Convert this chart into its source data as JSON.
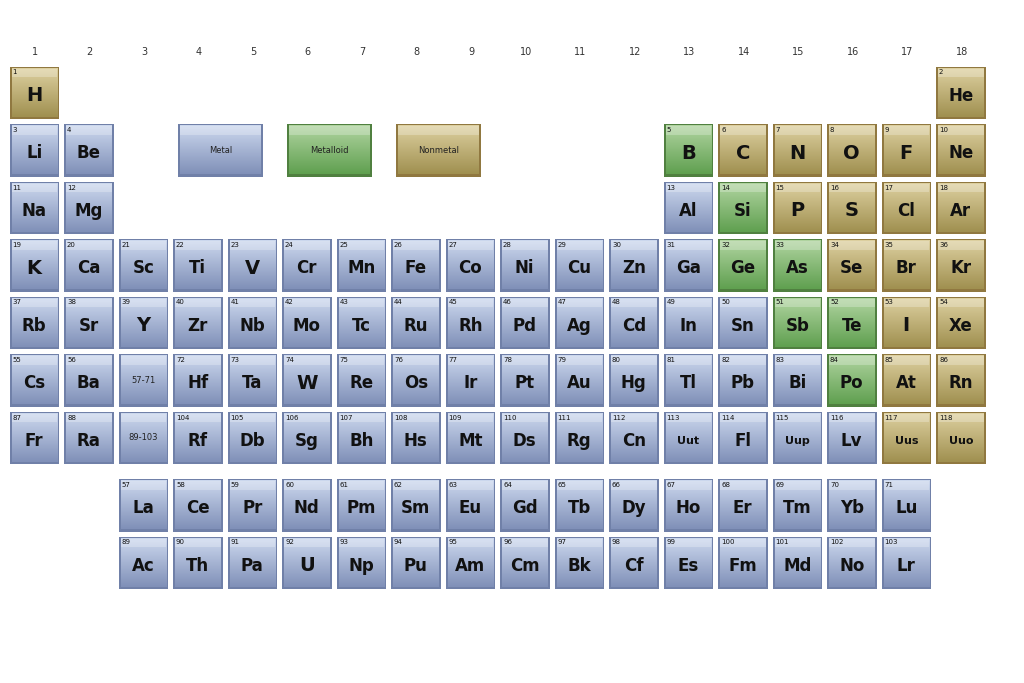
{
  "background": "#ffffff",
  "type_colors": {
    "metal": {
      "top": "#ccd8ee",
      "mid": "#a8bcdc",
      "bot": "#8090b8",
      "edge": "#7080a8"
    },
    "metalloid": {
      "top": "#b0d4a0",
      "mid": "#90c080",
      "bot": "#60a050",
      "edge": "#508040"
    },
    "nonmetal": {
      "top": "#ddd0a0",
      "mid": "#c8b878",
      "bot": "#a09050",
      "edge": "#907840"
    }
  },
  "elements": [
    {
      "symbol": "H",
      "number": "1",
      "group": 1,
      "period": 1,
      "type": "nonmetal"
    },
    {
      "symbol": "He",
      "number": "2",
      "group": 18,
      "period": 1,
      "type": "nonmetal"
    },
    {
      "symbol": "Li",
      "number": "3",
      "group": 1,
      "period": 2,
      "type": "metal"
    },
    {
      "symbol": "Be",
      "number": "4",
      "group": 2,
      "period": 2,
      "type": "metal"
    },
    {
      "symbol": "B",
      "number": "5",
      "group": 13,
      "period": 2,
      "type": "metalloid"
    },
    {
      "symbol": "C",
      "number": "6",
      "group": 14,
      "period": 2,
      "type": "nonmetal"
    },
    {
      "symbol": "N",
      "number": "7",
      "group": 15,
      "period": 2,
      "type": "nonmetal"
    },
    {
      "symbol": "O",
      "number": "8",
      "group": 16,
      "period": 2,
      "type": "nonmetal"
    },
    {
      "symbol": "F",
      "number": "9",
      "group": 17,
      "period": 2,
      "type": "nonmetal"
    },
    {
      "symbol": "Ne",
      "number": "10",
      "group": 18,
      "period": 2,
      "type": "nonmetal"
    },
    {
      "symbol": "Na",
      "number": "11",
      "group": 1,
      "period": 3,
      "type": "metal"
    },
    {
      "symbol": "Mg",
      "number": "12",
      "group": 2,
      "period": 3,
      "type": "metal"
    },
    {
      "symbol": "Al",
      "number": "13",
      "group": 13,
      "period": 3,
      "type": "metal"
    },
    {
      "symbol": "Si",
      "number": "14",
      "group": 14,
      "period": 3,
      "type": "metalloid"
    },
    {
      "symbol": "P",
      "number": "15",
      "group": 15,
      "period": 3,
      "type": "nonmetal"
    },
    {
      "symbol": "S",
      "number": "16",
      "group": 16,
      "period": 3,
      "type": "nonmetal"
    },
    {
      "symbol": "Cl",
      "number": "17",
      "group": 17,
      "period": 3,
      "type": "nonmetal"
    },
    {
      "symbol": "Ar",
      "number": "18",
      "group": 18,
      "period": 3,
      "type": "nonmetal"
    },
    {
      "symbol": "K",
      "number": "19",
      "group": 1,
      "period": 4,
      "type": "metal"
    },
    {
      "symbol": "Ca",
      "number": "20",
      "group": 2,
      "period": 4,
      "type": "metal"
    },
    {
      "symbol": "Sc",
      "number": "21",
      "group": 3,
      "period": 4,
      "type": "metal"
    },
    {
      "symbol": "Ti",
      "number": "22",
      "group": 4,
      "period": 4,
      "type": "metal"
    },
    {
      "symbol": "V",
      "number": "23",
      "group": 5,
      "period": 4,
      "type": "metal"
    },
    {
      "symbol": "Cr",
      "number": "24",
      "group": 6,
      "period": 4,
      "type": "metal"
    },
    {
      "symbol": "Mn",
      "number": "25",
      "group": 7,
      "period": 4,
      "type": "metal"
    },
    {
      "symbol": "Fe",
      "number": "26",
      "group": 8,
      "period": 4,
      "type": "metal"
    },
    {
      "symbol": "Co",
      "number": "27",
      "group": 9,
      "period": 4,
      "type": "metal"
    },
    {
      "symbol": "Ni",
      "number": "28",
      "group": 10,
      "period": 4,
      "type": "metal"
    },
    {
      "symbol": "Cu",
      "number": "29",
      "group": 11,
      "period": 4,
      "type": "metal"
    },
    {
      "symbol": "Zn",
      "number": "30",
      "group": 12,
      "period": 4,
      "type": "metal"
    },
    {
      "symbol": "Ga",
      "number": "31",
      "group": 13,
      "period": 4,
      "type": "metal"
    },
    {
      "symbol": "Ge",
      "number": "32",
      "group": 14,
      "period": 4,
      "type": "metalloid"
    },
    {
      "symbol": "As",
      "number": "33",
      "group": 15,
      "period": 4,
      "type": "metalloid"
    },
    {
      "symbol": "Se",
      "number": "34",
      "group": 16,
      "period": 4,
      "type": "nonmetal"
    },
    {
      "symbol": "Br",
      "number": "35",
      "group": 17,
      "period": 4,
      "type": "nonmetal"
    },
    {
      "symbol": "Kr",
      "number": "36",
      "group": 18,
      "period": 4,
      "type": "nonmetal"
    },
    {
      "symbol": "Rb",
      "number": "37",
      "group": 1,
      "period": 5,
      "type": "metal"
    },
    {
      "symbol": "Sr",
      "number": "38",
      "group": 2,
      "period": 5,
      "type": "metal"
    },
    {
      "symbol": "Y",
      "number": "39",
      "group": 3,
      "period": 5,
      "type": "metal"
    },
    {
      "symbol": "Zr",
      "number": "40",
      "group": 4,
      "period": 5,
      "type": "metal"
    },
    {
      "symbol": "Nb",
      "number": "41",
      "group": 5,
      "period": 5,
      "type": "metal"
    },
    {
      "symbol": "Mo",
      "number": "42",
      "group": 6,
      "period": 5,
      "type": "metal"
    },
    {
      "symbol": "Tc",
      "number": "43",
      "group": 7,
      "period": 5,
      "type": "metal"
    },
    {
      "symbol": "Ru",
      "number": "44",
      "group": 8,
      "period": 5,
      "type": "metal"
    },
    {
      "symbol": "Rh",
      "number": "45",
      "group": 9,
      "period": 5,
      "type": "metal"
    },
    {
      "symbol": "Pd",
      "number": "46",
      "group": 10,
      "period": 5,
      "type": "metal"
    },
    {
      "symbol": "Ag",
      "number": "47",
      "group": 11,
      "period": 5,
      "type": "metal"
    },
    {
      "symbol": "Cd",
      "number": "48",
      "group": 12,
      "period": 5,
      "type": "metal"
    },
    {
      "symbol": "In",
      "number": "49",
      "group": 13,
      "period": 5,
      "type": "metal"
    },
    {
      "symbol": "Sn",
      "number": "50",
      "group": 14,
      "period": 5,
      "type": "metal"
    },
    {
      "symbol": "Sb",
      "number": "51",
      "group": 15,
      "period": 5,
      "type": "metalloid"
    },
    {
      "symbol": "Te",
      "number": "52",
      "group": 16,
      "period": 5,
      "type": "metalloid"
    },
    {
      "symbol": "I",
      "number": "53",
      "group": 17,
      "period": 5,
      "type": "nonmetal"
    },
    {
      "symbol": "Xe",
      "number": "54",
      "group": 18,
      "period": 5,
      "type": "nonmetal"
    },
    {
      "symbol": "Cs",
      "number": "55",
      "group": 1,
      "period": 6,
      "type": "metal"
    },
    {
      "symbol": "Ba",
      "number": "56",
      "group": 2,
      "period": 6,
      "type": "metal"
    },
    {
      "symbol": "57-71",
      "number": "57-71",
      "group": 3,
      "period": 6,
      "type": "metal",
      "placeholder": true
    },
    {
      "symbol": "Hf",
      "number": "72",
      "group": 4,
      "period": 6,
      "type": "metal"
    },
    {
      "symbol": "Ta",
      "number": "73",
      "group": 5,
      "period": 6,
      "type": "metal"
    },
    {
      "symbol": "W",
      "number": "74",
      "group": 6,
      "period": 6,
      "type": "metal"
    },
    {
      "symbol": "Re",
      "number": "75",
      "group": 7,
      "period": 6,
      "type": "metal"
    },
    {
      "symbol": "Os",
      "number": "76",
      "group": 8,
      "period": 6,
      "type": "metal"
    },
    {
      "symbol": "Ir",
      "number": "77",
      "group": 9,
      "period": 6,
      "type": "metal"
    },
    {
      "symbol": "Pt",
      "number": "78",
      "group": 10,
      "period": 6,
      "type": "metal"
    },
    {
      "symbol": "Au",
      "number": "79",
      "group": 11,
      "period": 6,
      "type": "metal"
    },
    {
      "symbol": "Hg",
      "number": "80",
      "group": 12,
      "period": 6,
      "type": "metal"
    },
    {
      "symbol": "Tl",
      "number": "81",
      "group": 13,
      "period": 6,
      "type": "metal"
    },
    {
      "symbol": "Pb",
      "number": "82",
      "group": 14,
      "period": 6,
      "type": "metal"
    },
    {
      "symbol": "Bi",
      "number": "83",
      "group": 15,
      "period": 6,
      "type": "metal"
    },
    {
      "symbol": "Po",
      "number": "84",
      "group": 16,
      "period": 6,
      "type": "metalloid"
    },
    {
      "symbol": "At",
      "number": "85",
      "group": 17,
      "period": 6,
      "type": "nonmetal"
    },
    {
      "symbol": "Rn",
      "number": "86",
      "group": 18,
      "period": 6,
      "type": "nonmetal"
    },
    {
      "symbol": "Fr",
      "number": "87",
      "group": 1,
      "period": 7,
      "type": "metal"
    },
    {
      "symbol": "Ra",
      "number": "88",
      "group": 2,
      "period": 7,
      "type": "metal"
    },
    {
      "symbol": "89-103",
      "number": "89-103",
      "group": 3,
      "period": 7,
      "type": "metal",
      "placeholder": true
    },
    {
      "symbol": "Rf",
      "number": "104",
      "group": 4,
      "period": 7,
      "type": "metal"
    },
    {
      "symbol": "Db",
      "number": "105",
      "group": 5,
      "period": 7,
      "type": "metal"
    },
    {
      "symbol": "Sg",
      "number": "106",
      "group": 6,
      "period": 7,
      "type": "metal"
    },
    {
      "symbol": "Bh",
      "number": "107",
      "group": 7,
      "period": 7,
      "type": "metal"
    },
    {
      "symbol": "Hs",
      "number": "108",
      "group": 8,
      "period": 7,
      "type": "metal"
    },
    {
      "symbol": "Mt",
      "number": "109",
      "group": 9,
      "period": 7,
      "type": "metal"
    },
    {
      "symbol": "Ds",
      "number": "110",
      "group": 10,
      "period": 7,
      "type": "metal"
    },
    {
      "symbol": "Rg",
      "number": "111",
      "group": 11,
      "period": 7,
      "type": "metal"
    },
    {
      "symbol": "Cn",
      "number": "112",
      "group": 12,
      "period": 7,
      "type": "metal"
    },
    {
      "symbol": "Uut",
      "number": "113",
      "group": 13,
      "period": 7,
      "type": "metal"
    },
    {
      "symbol": "Fl",
      "number": "114",
      "group": 14,
      "period": 7,
      "type": "metal"
    },
    {
      "symbol": "Uup",
      "number": "115",
      "group": 15,
      "period": 7,
      "type": "metal"
    },
    {
      "symbol": "Lv",
      "number": "116",
      "group": 16,
      "period": 7,
      "type": "metal"
    },
    {
      "symbol": "Uus",
      "number": "117",
      "group": 17,
      "period": 7,
      "type": "nonmetal"
    },
    {
      "symbol": "Uuo",
      "number": "118",
      "group": 18,
      "period": 7,
      "type": "nonmetal"
    },
    {
      "symbol": "La",
      "number": "57",
      "group": 3,
      "period": 8,
      "type": "metal"
    },
    {
      "symbol": "Ce",
      "number": "58",
      "group": 4,
      "period": 8,
      "type": "metal"
    },
    {
      "symbol": "Pr",
      "number": "59",
      "group": 5,
      "period": 8,
      "type": "metal"
    },
    {
      "symbol": "Nd",
      "number": "60",
      "group": 6,
      "period": 8,
      "type": "metal"
    },
    {
      "symbol": "Pm",
      "number": "61",
      "group": 7,
      "period": 8,
      "type": "metal"
    },
    {
      "symbol": "Sm",
      "number": "62",
      "group": 8,
      "period": 8,
      "type": "metal"
    },
    {
      "symbol": "Eu",
      "number": "63",
      "group": 9,
      "period": 8,
      "type": "metal"
    },
    {
      "symbol": "Gd",
      "number": "64",
      "group": 10,
      "period": 8,
      "type": "metal"
    },
    {
      "symbol": "Tb",
      "number": "65",
      "group": 11,
      "period": 8,
      "type": "metal"
    },
    {
      "symbol": "Dy",
      "number": "66",
      "group": 12,
      "period": 8,
      "type": "metal"
    },
    {
      "symbol": "Ho",
      "number": "67",
      "group": 13,
      "period": 8,
      "type": "metal"
    },
    {
      "symbol": "Er",
      "number": "68",
      "group": 14,
      "period": 8,
      "type": "metal"
    },
    {
      "symbol": "Tm",
      "number": "69",
      "group": 15,
      "period": 8,
      "type": "metal"
    },
    {
      "symbol": "Yb",
      "number": "70",
      "group": 16,
      "period": 8,
      "type": "metal"
    },
    {
      "symbol": "Lu",
      "number": "71",
      "group": 17,
      "period": 8,
      "type": "metal"
    },
    {
      "symbol": "Ac",
      "number": "89",
      "group": 3,
      "period": 9,
      "type": "metal"
    },
    {
      "symbol": "Th",
      "number": "90",
      "group": 4,
      "period": 9,
      "type": "metal"
    },
    {
      "symbol": "Pa",
      "number": "91",
      "group": 5,
      "period": 9,
      "type": "metal"
    },
    {
      "symbol": "U",
      "number": "92",
      "group": 6,
      "period": 9,
      "type": "metal"
    },
    {
      "symbol": "Np",
      "number": "93",
      "group": 7,
      "period": 9,
      "type": "metal"
    },
    {
      "symbol": "Pu",
      "number": "94",
      "group": 8,
      "period": 9,
      "type": "metal"
    },
    {
      "symbol": "Am",
      "number": "95",
      "group": 9,
      "period": 9,
      "type": "metal"
    },
    {
      "symbol": "Cm",
      "number": "96",
      "group": 10,
      "period": 9,
      "type": "metal"
    },
    {
      "symbol": "Bk",
      "number": "97",
      "group": 11,
      "period": 9,
      "type": "metal"
    },
    {
      "symbol": "Cf",
      "number": "98",
      "group": 12,
      "period": 9,
      "type": "metal"
    },
    {
      "symbol": "Es",
      "number": "99",
      "group": 13,
      "period": 9,
      "type": "metal"
    },
    {
      "symbol": "Fm",
      "number": "100",
      "group": 14,
      "period": 9,
      "type": "metal"
    },
    {
      "symbol": "Md",
      "number": "101",
      "group": 15,
      "period": 9,
      "type": "metal"
    },
    {
      "symbol": "No",
      "number": "102",
      "group": 16,
      "period": 9,
      "type": "metal"
    },
    {
      "symbol": "Lr",
      "number": "103",
      "group": 17,
      "period": 9,
      "type": "metal"
    }
  ],
  "legend": [
    {
      "label": "Metal",
      "type": "metal",
      "col": 4
    },
    {
      "label": "Metalloid",
      "type": "metalloid",
      "col": 6
    },
    {
      "label": "Nonmetal",
      "type": "nonmetal",
      "col": 8
    }
  ],
  "group_headers": [
    1,
    2,
    3,
    4,
    5,
    6,
    7,
    8,
    9,
    10,
    11,
    12,
    13,
    14,
    15,
    16,
    17,
    18
  ]
}
